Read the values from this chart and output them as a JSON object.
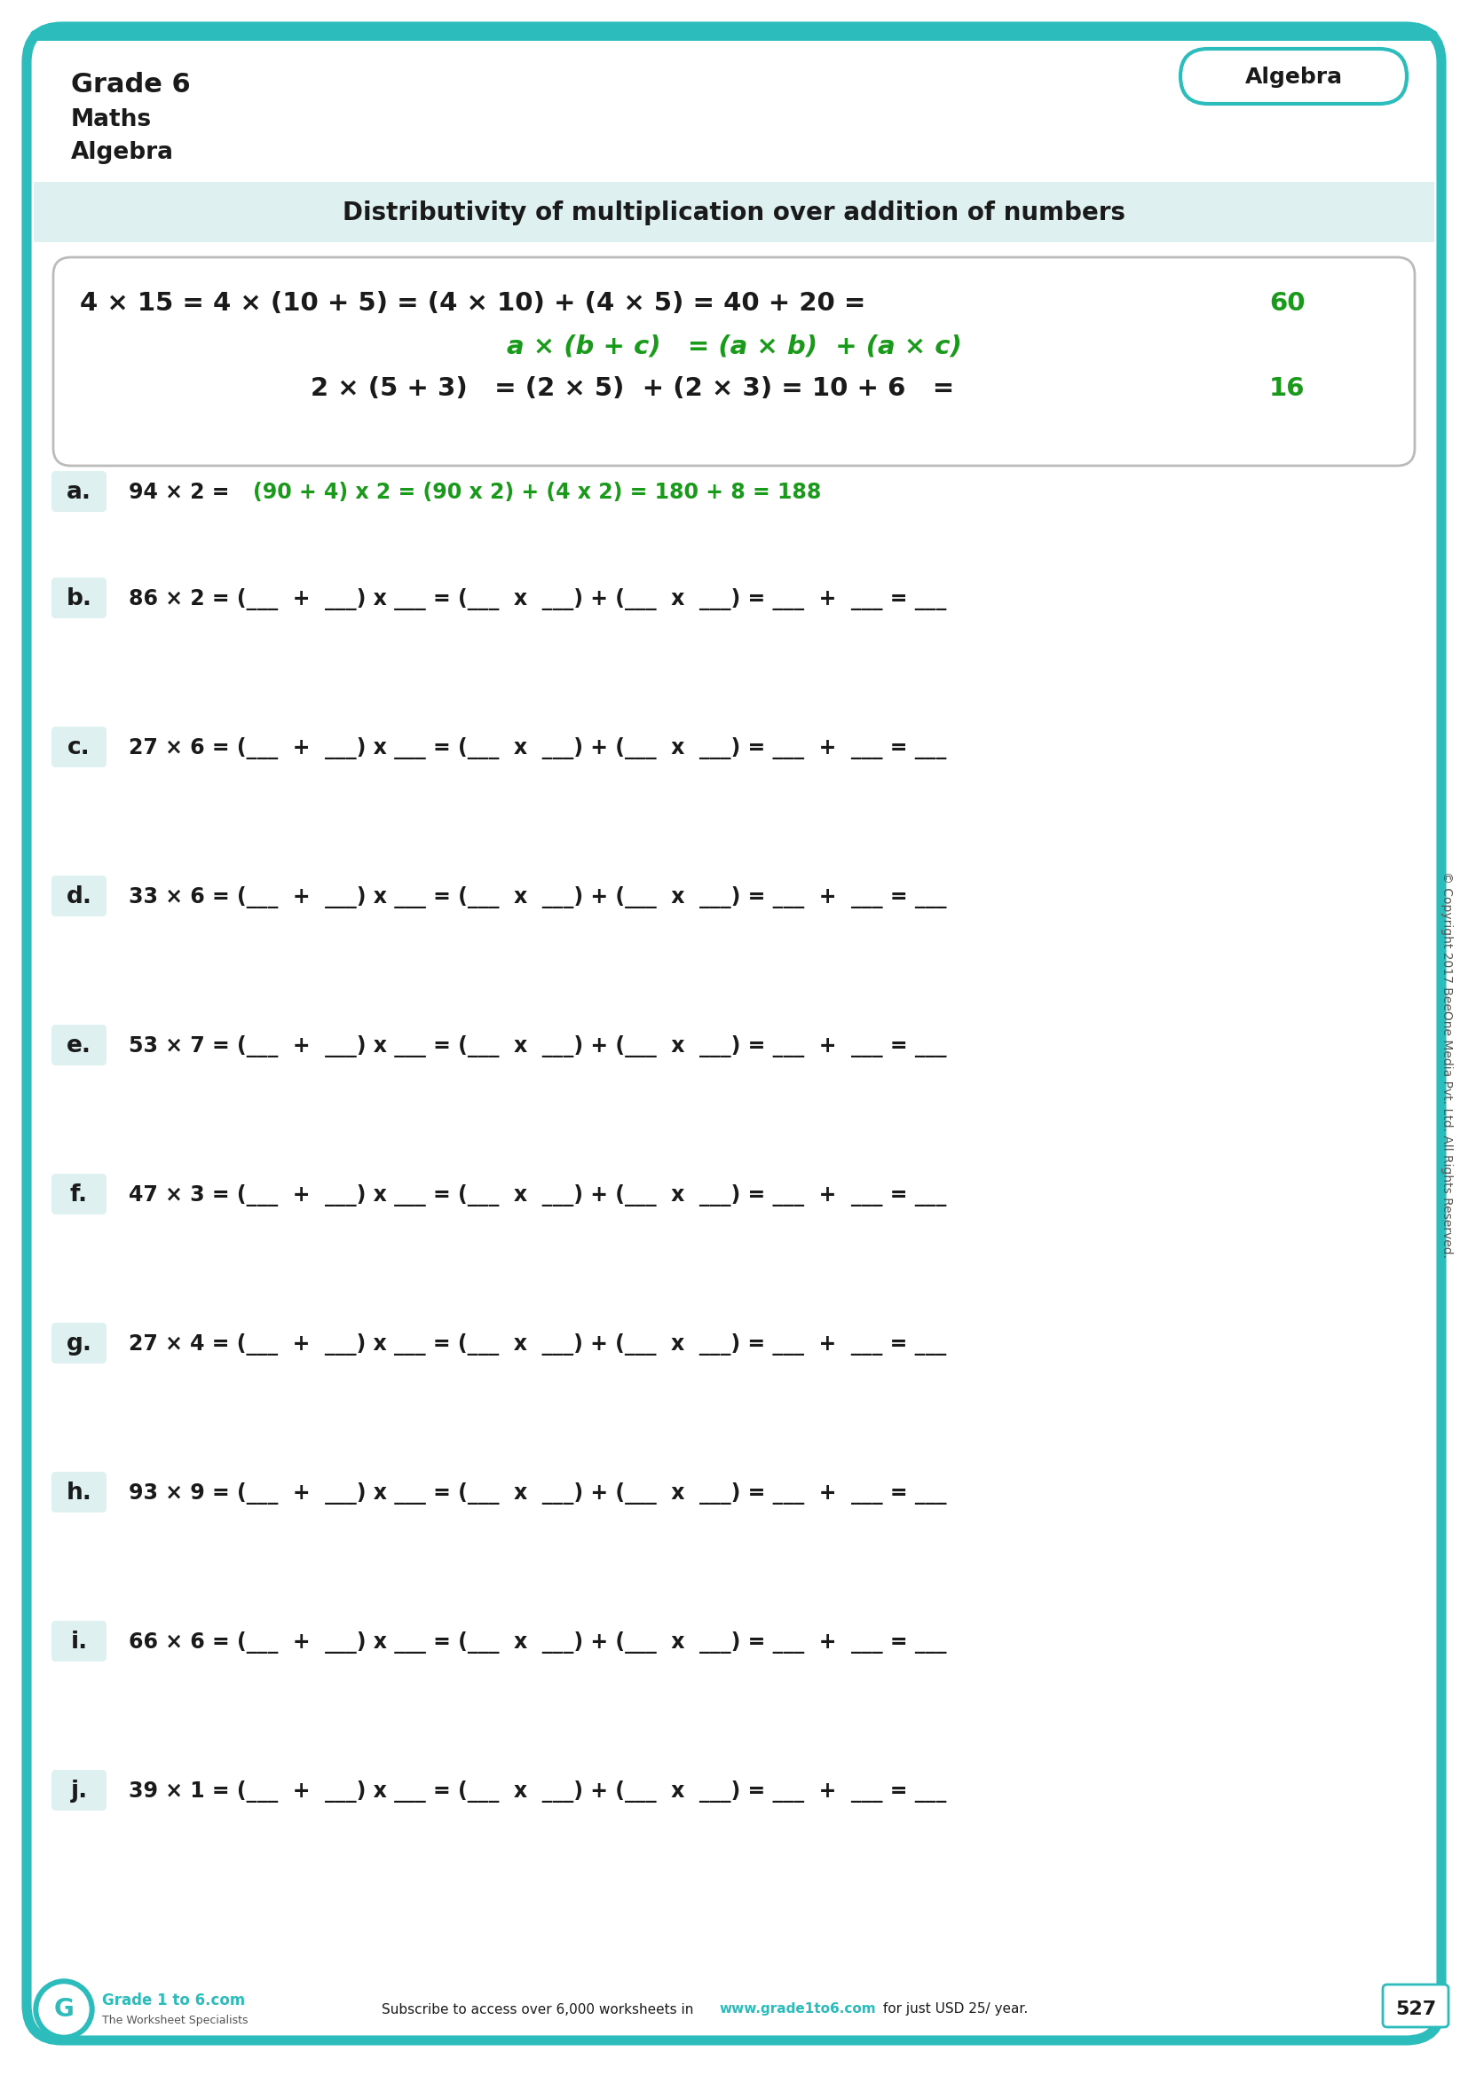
{
  "page_bg": "#ffffff",
  "border_color": "#2bbcbb",
  "border_width": 8,
  "header_bg": "#ffffff",
  "grade_text": "Grade 6",
  "subject_text": "Maths",
  "topic_text": "Algebra",
  "algebra_badge_text": "Algebra",
  "title_bg": "#dff0f0",
  "title_text": "Distributivity of multiplication over addition of numbers",
  "example_box_bg": "#ffffff",
  "example_line1_black": "4 × 15 = 4 × (10 + 5) = (4 × 10) + (4 × 5) = 40 + 20 = ",
  "example_line1_green": "60",
  "example_line2_green": "a × (b + c)   = (a × b)  + (a × c)",
  "example_line3_black": "2 × (5 + 3)   = (2 × 5)  + (2 × 3) = 10 + 6   = ",
  "example_line3_green": "16",
  "solved_label": "a.",
  "solved_text_black": "94 × 2 = ",
  "solved_text_green": "(90 + 4) x 2 = (90 x 2) + (4 x 2) = 180 + 8 = 188",
  "problems": [
    {
      "label": "b.",
      "text": "86 × 2 = (___  +  ___) x ___ = (___  x  ___) + (___  x  ___) = ___  +  ___ = ___"
    },
    {
      "label": "c.",
      "text": "27 × 6 = (___  +  ___) x ___ = (___  x  ___) + (___  x  ___) = ___  +  ___ = ___"
    },
    {
      "label": "d.",
      "text": "33 × 6 = (___  +  ___) x ___ = (___  x  ___) + (___  x  ___) = ___  +  ___ = ___"
    },
    {
      "label": "e.",
      "text": "53 × 7 = (___  +  ___) x ___ = (___  x  ___) + (___  x  ___) = ___  +  ___ = ___"
    },
    {
      "label": "f.",
      "text": "47 × 3 = (___  +  ___) x ___ = (___  x  ___) + (___  x  ___) = ___  +  ___ = ___"
    },
    {
      "label": "g.",
      "text": "27 × 4 = (___  +  ___) x ___ = (___  x  ___) + (___  x  ___) = ___  +  ___ = ___"
    },
    {
      "label": "h.",
      "text": "93 × 9 = (___  +  ___) x ___ = (___  x  ___) + (___  x  ___) = ___  +  ___ = ___"
    },
    {
      "label": "i.",
      "text": "66 × 6 = (___  +  ___) x ___ = (___  x  ___) + (___  x  ___) = ___  +  ___ = ___"
    },
    {
      "label": "j.",
      "text": "39 × 1 = (___  +  ___) x ___ = (___  x  ___) + (___  x  ___) = ___  +  ___ = ___"
    }
  ],
  "footer_logo_text": "Grade 1 to 6.com",
  "footer_sub_text": "The Worksheet Specialists",
  "footer_main_text": "Subscribe to access over 6,000 worksheets in ",
  "footer_url": "www.grade1to6.com",
  "footer_end_text": " for just USD 25/ year.",
  "page_number": "527",
  "copyright_text": "© Copyright 2017 BeeOne Media Pvt. Ltd. All Rights Reserved.",
  "teal": "#2bbcbb",
  "green": "#1a9a1a",
  "black": "#1a1a1a",
  "label_bg": "#dff0f0",
  "solved_bg": "#dff0f0"
}
